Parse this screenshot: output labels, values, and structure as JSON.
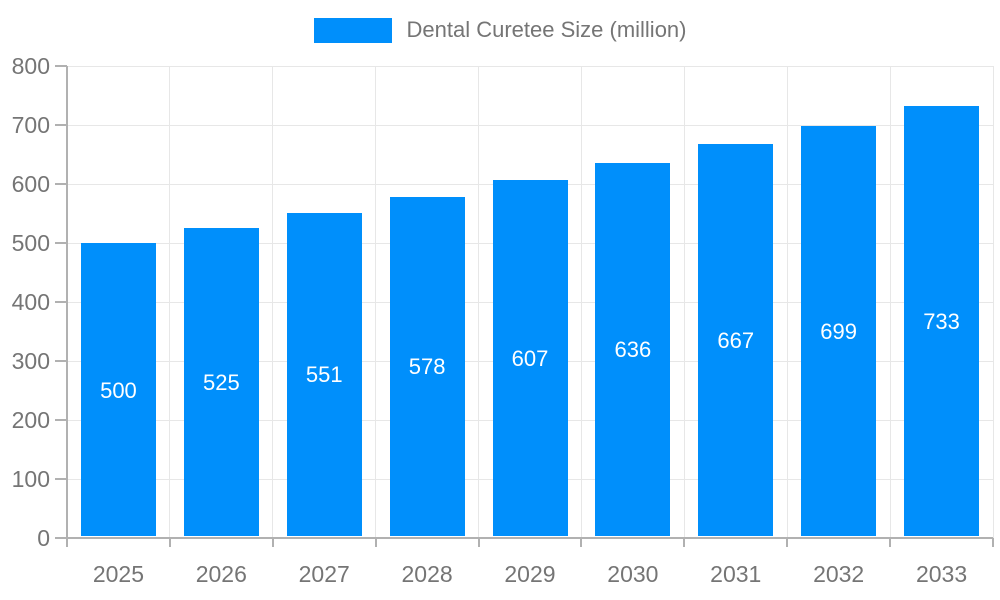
{
  "chart_data": {
    "type": "bar",
    "title": "Dental Curetee Size (million)",
    "categories": [
      "2025",
      "2026",
      "2027",
      "2028",
      "2029",
      "2030",
      "2031",
      "2032",
      "2033"
    ],
    "values": [
      500,
      525,
      551,
      578,
      607,
      636,
      667,
      699,
      733
    ],
    "xlabel": "",
    "ylabel": "",
    "ylim": [
      0,
      800
    ],
    "ytick_step": 100,
    "yticks": [
      0,
      100,
      200,
      300,
      400,
      500,
      600,
      700,
      800
    ],
    "grid": "horizontal and vertical, light gray",
    "legend_position": "top-center",
    "value_labels": "white, centered inside bars",
    "colors": {
      "bar": "#008FFB",
      "value_label": "#ffffff",
      "axis_label": "#757575",
      "legend_text": "#757575",
      "gridline": "#e7e7e7",
      "axis_line": "#b1b1b1"
    }
  }
}
